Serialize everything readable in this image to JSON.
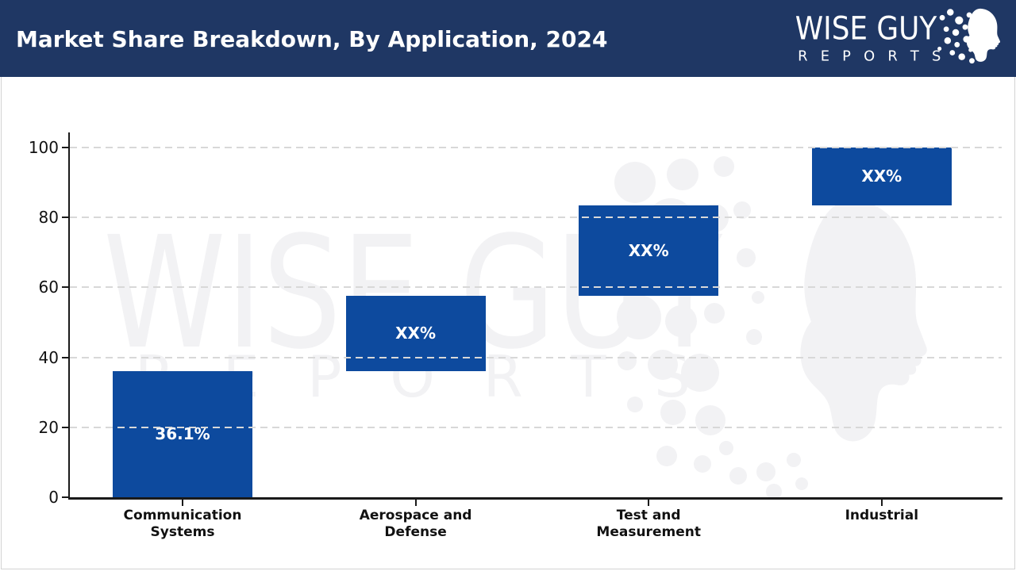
{
  "header": {
    "title": "Market Share Breakdown, By Application, 2024",
    "logo": {
      "line1": "WISE GUY",
      "line2": "R E P O R T S"
    }
  },
  "watermark": {
    "line1": "WISE GUY",
    "line2": "R E P O R T S"
  },
  "colors": {
    "header_bg": "#1f3764",
    "title_text": "#ffffff",
    "bar": "#0d4a9e",
    "bar_label": "#ffffff",
    "gridline": "#d8d8d8",
    "axis": "#1a1a1a",
    "watermark": "#f2f2f4"
  },
  "chart_data": {
    "type": "waterfall-bar",
    "title": "Market Share Breakdown, By Application, 2024",
    "categories": [
      {
        "name": "Communication Systems",
        "lines": [
          "Communication",
          "Systems"
        ]
      },
      {
        "name": "Aerospace and Defense",
        "lines": [
          "Aerospace and",
          "Defense"
        ]
      },
      {
        "name": "Test and Measurement",
        "lines": [
          "Test and",
          "Measurement"
        ]
      },
      {
        "name": "Industrial",
        "lines": [
          "Industrial"
        ]
      }
    ],
    "segments": [
      {
        "category": "Communication Systems",
        "start": 0,
        "end": 36.1,
        "label": "36.1%"
      },
      {
        "category": "Aerospace and Defense",
        "start": 36.1,
        "end": 57.7,
        "label": "XX%"
      },
      {
        "category": "Test and Measurement",
        "start": 57.7,
        "end": 83.5,
        "label": "XX%"
      },
      {
        "category": "Industrial",
        "start": 83.5,
        "end": 100,
        "label": "XX%"
      }
    ],
    "yticks": [
      0,
      20,
      40,
      60,
      80,
      100
    ],
    "ylim": [
      0,
      100
    ],
    "grid": "horizontal-dashed",
    "legend": "none"
  }
}
